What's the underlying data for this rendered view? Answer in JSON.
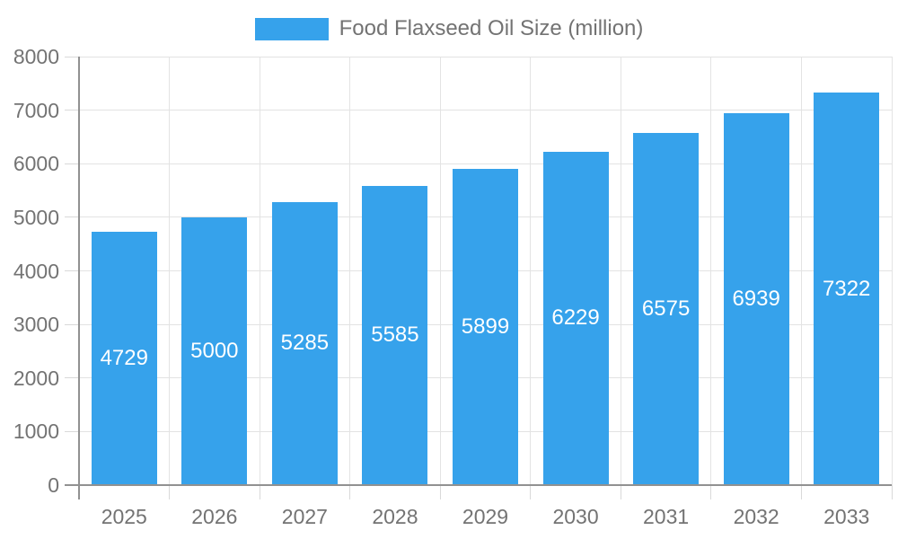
{
  "legend": {
    "label": "Food Flaxseed Oil Size (million)"
  },
  "colors": {
    "bar": "#36A2EB",
    "bar_label_text": "#ffffff",
    "grid": "#e3e3e3",
    "tick": "#d9d9d9",
    "axis": "#919191",
    "text": "#737373"
  },
  "chart_data": {
    "type": "bar",
    "title": "Food Flaxseed Oil Size (million)",
    "categories": [
      "2025",
      "2026",
      "2027",
      "2028",
      "2029",
      "2030",
      "2031",
      "2032",
      "2033"
    ],
    "values": [
      4729,
      5000,
      5285,
      5585,
      5899,
      6229,
      6575,
      6939,
      7322
    ],
    "series_name": "Food Flaxseed Oil Size (million)",
    "xlabel": "",
    "ylabel": "",
    "ylim": [
      0,
      8000
    ],
    "y_tick_step": 1000,
    "y_tick_labels": [
      "0",
      "1000",
      "2000",
      "3000",
      "4000",
      "5000",
      "6000",
      "7000",
      "8000"
    ],
    "grid": "on",
    "legend_position": "top-center",
    "value_labels": "inside-center"
  }
}
